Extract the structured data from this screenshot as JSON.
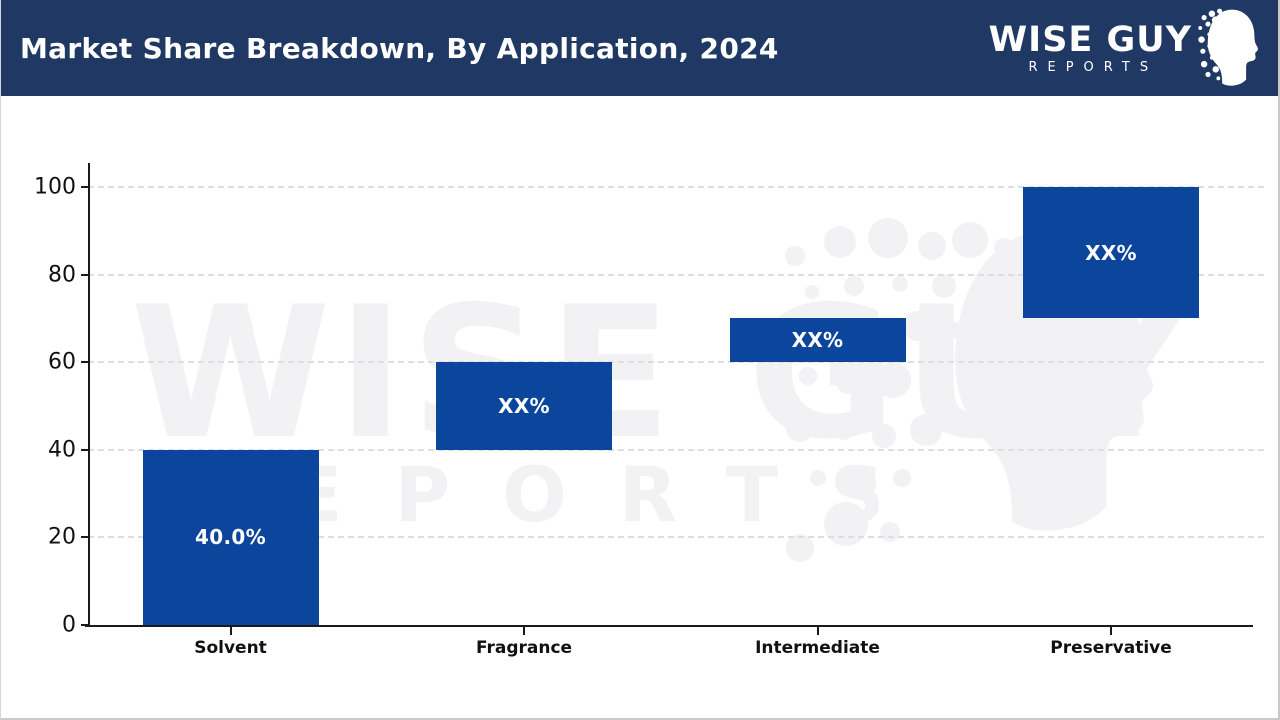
{
  "header": {
    "title": "Market Share Breakdown, By Application, 2024",
    "bg_color": "#203864",
    "logo": {
      "line1": "WISE GUY",
      "line2": "REPORTS"
    }
  },
  "watermark": {
    "line1": "WISE GUY",
    "line2": "REPORTS"
  },
  "chart_data": {
    "type": "bar",
    "subtype": "waterfall",
    "title": "Market Share Breakdown, By Application, 2024",
    "categories": [
      "Solvent",
      "Fragrance",
      "Intermediate",
      "Preservative"
    ],
    "segments": [
      {
        "category": "Solvent",
        "start": 0,
        "end": 40,
        "label": "40.0%"
      },
      {
        "category": "Fragrance",
        "start": 40,
        "end": 60,
        "label": "XX%"
      },
      {
        "category": "Intermediate",
        "start": 60,
        "end": 70,
        "label": "XX%"
      },
      {
        "category": "Preservative",
        "start": 70,
        "end": 100,
        "label": "XX%"
      }
    ],
    "xlabel": "",
    "ylabel": "",
    "ylim": [
      0,
      100
    ],
    "yticks": [
      0,
      20,
      40,
      60,
      80,
      100
    ],
    "grid": "horizontal-dashed",
    "legend": "none",
    "bar_color": "#0b469c",
    "bar_label_color": "#ffffff",
    "axis_color": "#1a1a1a",
    "grid_color": "#dedede"
  }
}
